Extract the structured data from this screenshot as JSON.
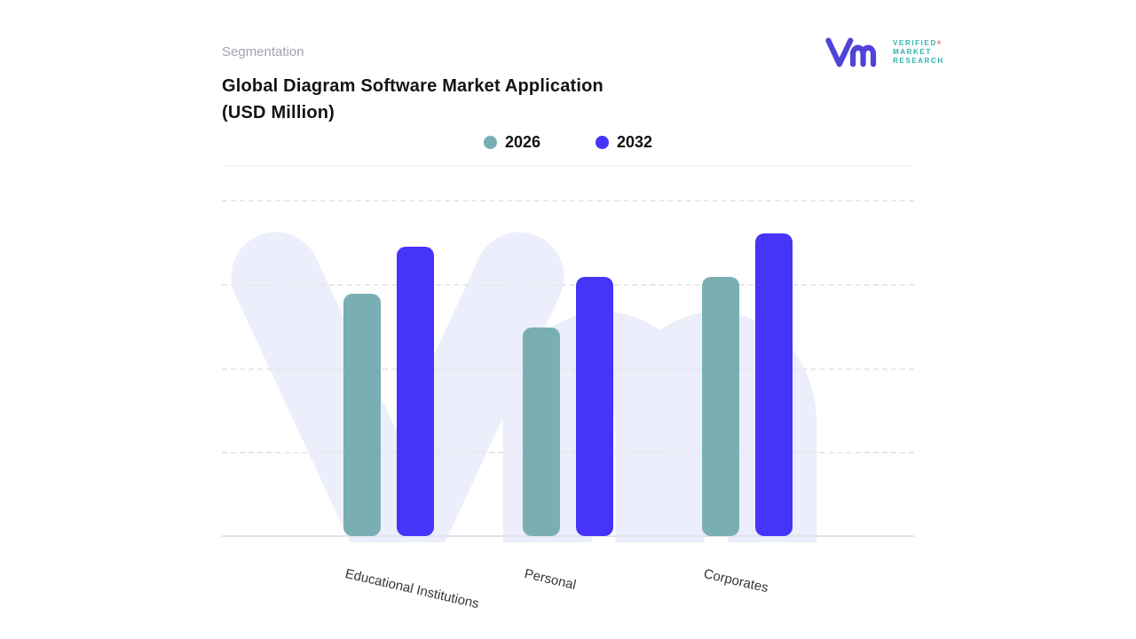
{
  "header": {
    "eyebrow": "Segmentation",
    "title_line1": "Global Diagram Software Market Application",
    "title_line2": "(USD Million)"
  },
  "logo": {
    "company": "Verified Market Research",
    "line1": "VERIFIED",
    "line2": "MARKET",
    "line3": "RESEARCH",
    "registered": "®",
    "mark_color": "#4f43d8",
    "text_color": "#2fb3ac"
  },
  "watermark": {
    "shape": "vm-monogram",
    "color": "#ecEEfb"
  },
  "chart_data": {
    "type": "bar",
    "title": "Global Diagram Software Market Application (USD Million)",
    "categories": [
      "Educational Institutions",
      "Personal",
      "Corporates"
    ],
    "series": [
      {
        "name": "2026",
        "color": "#79afb3",
        "values": [
          72,
          62,
          77
        ]
      },
      {
        "name": "2032",
        "color": "#4634f8",
        "values": [
          86,
          77,
          90
        ]
      }
    ],
    "ylim": [
      0,
      100
    ],
    "yaxis_labels_visible": false,
    "value_labels": false,
    "grid": "horizontal-dashed",
    "legend_position": "top-center",
    "xlabel": "",
    "ylabel": ""
  }
}
